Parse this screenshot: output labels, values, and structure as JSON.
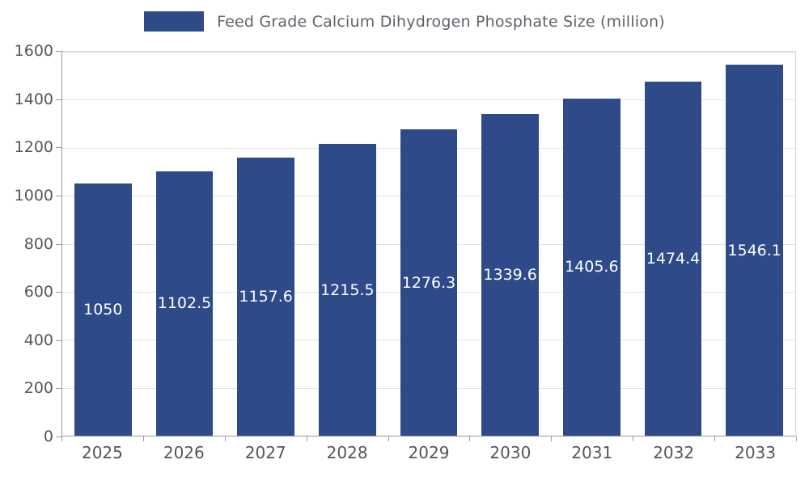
{
  "chart_data": {
    "type": "bar",
    "title": "Feed Grade Calcium Dihydrogen Phosphate Size (million)",
    "categories": [
      "2025",
      "2026",
      "2027",
      "2028",
      "2029",
      "2030",
      "2031",
      "2032",
      "2033"
    ],
    "values": [
      1050,
      1102.5,
      1157.6,
      1215.5,
      1276.3,
      1339.6,
      1405.6,
      1474.4,
      1546.1
    ],
    "value_labels": [
      "1050",
      "1102.5",
      "1157.6",
      "1215.5",
      "1276.3",
      "1339.6",
      "1405.6",
      "1474.4",
      "1546.1"
    ],
    "xlabel": "",
    "ylabel": "",
    "ylim": [
      0,
      1600
    ],
    "ytick_step": 200,
    "grid": true,
    "legend_position": "top",
    "colors": {
      "bar": "#2e4a88",
      "value_label": "#ffffff",
      "axis_text": "#55555f",
      "title_text": "#62626d",
      "gridline": "#e2e2e2",
      "axis_line": "#9a9aa0"
    }
  }
}
